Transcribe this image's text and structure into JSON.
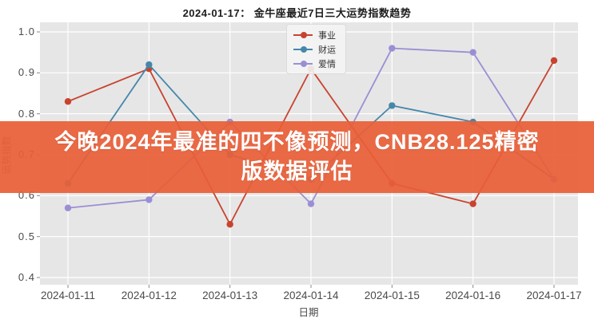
{
  "banner": {
    "line1": "今晚2024年最准的四不像预测，CNB28.125精密",
    "line2": "版数据评估",
    "bg_color": "#e85f38",
    "text_color": "#ffffff"
  },
  "chart_data": {
    "type": "line",
    "title": "2024-01-17： 金牛座最近7日三大运势指数趋势",
    "xlabel": "日期",
    "ylabel": "运势指数",
    "categories": [
      "2024-01-11",
      "2024-01-12",
      "2024-01-13",
      "2024-01-14",
      "2024-01-15",
      "2024-01-16",
      "2024-01-17"
    ],
    "series": [
      {
        "name": "事业",
        "color": "#c8432f",
        "values": [
          0.83,
          0.91,
          0.53,
          0.91,
          0.63,
          0.58,
          0.93
        ]
      },
      {
        "name": "财运",
        "color": "#4587ab",
        "values": [
          0.63,
          0.92,
          0.7,
          0.64,
          0.82,
          0.78,
          0.64
        ]
      },
      {
        "name": "爱情",
        "color": "#9a8fd4",
        "values": [
          0.57,
          0.59,
          0.78,
          0.58,
          0.96,
          0.95,
          0.64
        ]
      }
    ],
    "ylim": [
      0.4,
      1.0
    ],
    "y_ticks": [
      "1.0",
      "0.9",
      "0.8",
      "0.7",
      "0.6",
      "0.5",
      "0.4"
    ],
    "grid": "on",
    "grid_color": "#ffffff",
    "plot_bg": "#e6e6e6",
    "legend_position": "top-center"
  }
}
